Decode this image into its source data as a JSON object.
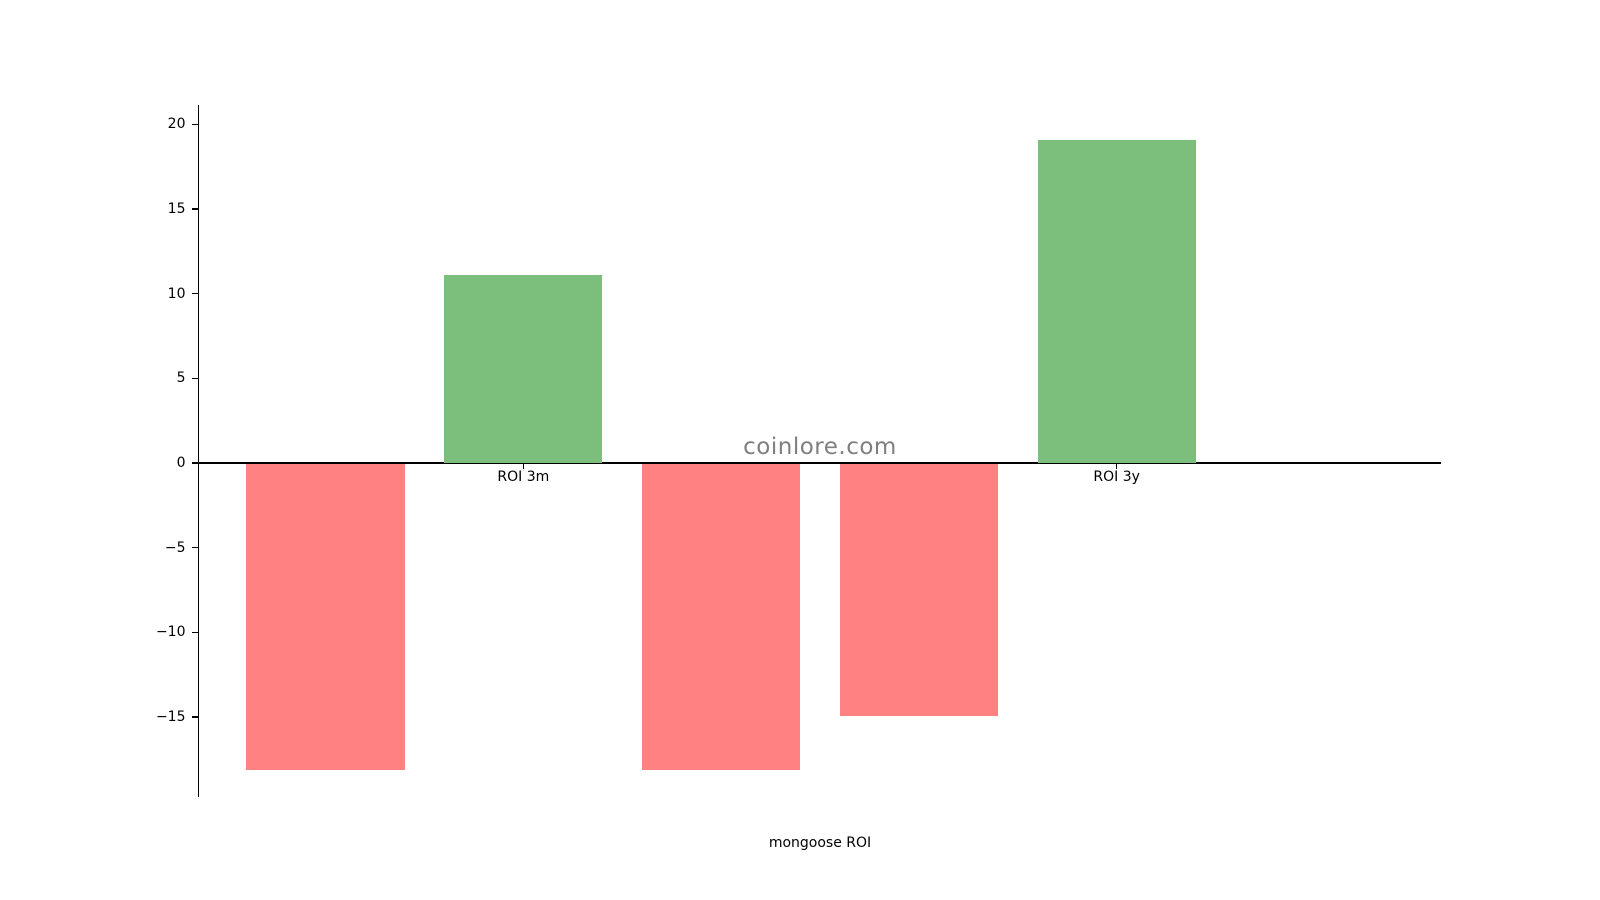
{
  "watermark": {
    "text": "coinlore.com",
    "color": "#7f7f7f"
  },
  "chart_data": {
    "type": "bar",
    "title": "",
    "xlabel": "mongoose ROI",
    "ylabel": "",
    "categories": [
      "",
      "ROI 3m",
      "",
      "",
      "ROI 3y"
    ],
    "values": [
      -18.1,
      11.1,
      -18.1,
      -14.9,
      19.1
    ],
    "yticks": [
      20,
      15,
      10,
      5,
      0,
      -5,
      -10,
      -15
    ],
    "ytick_labels": [
      "20",
      "15",
      "10",
      "5",
      "0",
      "−5",
      "−10",
      "−15"
    ],
    "ylim": [
      -19.8,
      21.2
    ],
    "grid": false,
    "legend": "none",
    "bar_width_fraction": 0.8,
    "colors": {
      "positive": "#7cbf7c",
      "negative": "#ff8181",
      "axis": "#000000",
      "tick_text": "#000000"
    },
    "watermark": "coinlore.com"
  }
}
